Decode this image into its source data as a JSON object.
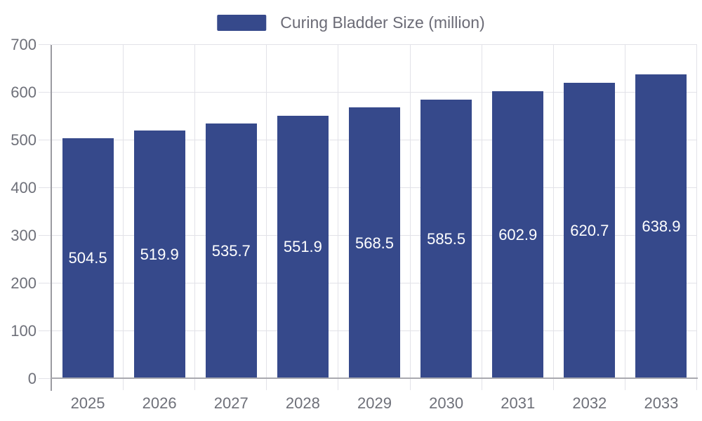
{
  "legend": {
    "label": "Curing Bladder Size (million)"
  },
  "chart_data": {
    "type": "bar",
    "title": "Curing Bladder Size (million)",
    "categories": [
      "2025",
      "2026",
      "2027",
      "2028",
      "2029",
      "2030",
      "2031",
      "2032",
      "2033"
    ],
    "series": [
      {
        "name": "Curing Bladder Size (million)",
        "values": [
          504.5,
          519.9,
          535.7,
          551.9,
          568.5,
          585.5,
          602.9,
          620.7,
          638.9
        ]
      }
    ],
    "xlabel": "",
    "ylabel": "",
    "ylim": [
      0,
      700
    ],
    "yticks": [
      0,
      100,
      200,
      300,
      400,
      500,
      600,
      700
    ],
    "grid": true,
    "legend_position": "top-center",
    "value_label_position": "inside-center",
    "value_label_format": "1-decimal",
    "colors": {
      "bar": "#36498b",
      "value_label": "#ffffff",
      "axis_text": "#6e7079",
      "legend_text": "#6b6b76",
      "grid_line": "#e2e2e8",
      "axis_line": "#a9a9af",
      "y_axis_line": "#9b9ba1",
      "background": "#ffffff"
    }
  }
}
